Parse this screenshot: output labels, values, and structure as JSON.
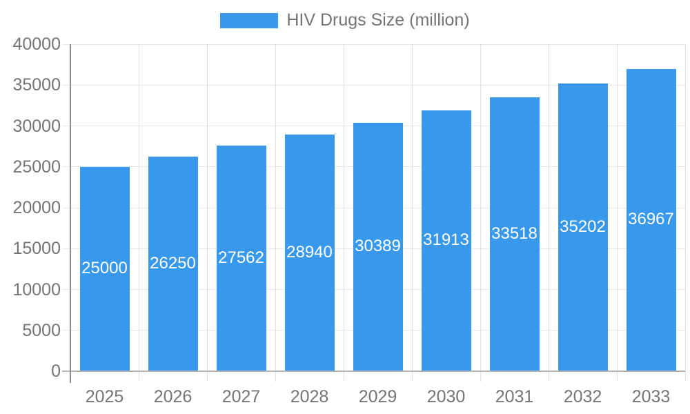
{
  "legend": {
    "label": "HIV Drugs Size (million)",
    "position": "top"
  },
  "chart_data": {
    "type": "bar",
    "title": "",
    "series_name": "HIV Drugs Size (million)",
    "categories": [
      "2025",
      "2026",
      "2027",
      "2028",
      "2029",
      "2030",
      "2031",
      "2032",
      "2033"
    ],
    "values": [
      25000,
      26250,
      27562,
      28940,
      30389,
      31913,
      33518,
      35202,
      36967
    ],
    "xlabel": "",
    "ylabel": "",
    "ylim": [
      0,
      40000
    ],
    "yticks": [
      0,
      5000,
      10000,
      15000,
      20000,
      25000,
      30000,
      35000,
      40000
    ],
    "grid": true,
    "legend_position": "top",
    "value_labels_inside_bars": true
  },
  "colors": {
    "bar": "#3899ec",
    "bar_label_text": "#ffffff",
    "axis_text": "#757575",
    "gridline": "#e6e6e6",
    "band_separator": "#e0e0e0",
    "axis_line": "#8c8c8c",
    "baseline": "#b3b3b3",
    "background": "#ffffff"
  }
}
